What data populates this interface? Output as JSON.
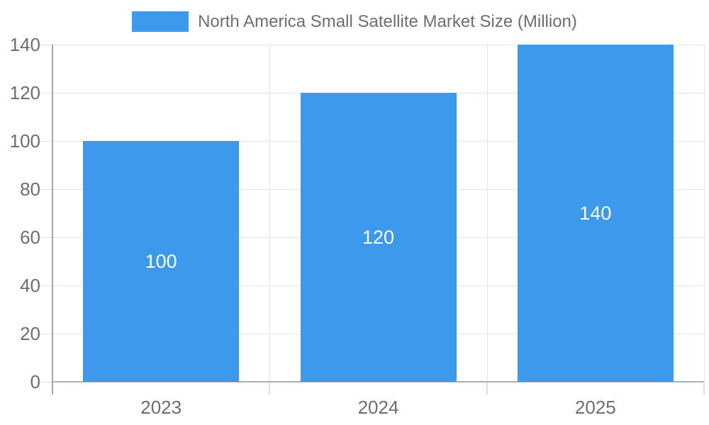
{
  "legend": {
    "label": "North America Small Satellite Market Size (Million)",
    "swatch_color": "#3c99ec"
  },
  "chart_data": {
    "type": "bar",
    "title": "North America Small Satellite Market Size (Million)",
    "categories": [
      "2023",
      "2024",
      "2025"
    ],
    "values": [
      100,
      120,
      140
    ],
    "data_labels": [
      "100",
      "120",
      "140"
    ],
    "xlabel": "",
    "ylabel": "",
    "ylim": [
      0,
      140
    ],
    "yticks": [
      0,
      20,
      40,
      60,
      80,
      100,
      120,
      140
    ],
    "grid": true,
    "legend_position": "top",
    "bar_color": "#3c99ec",
    "data_label_color": "#ffffff"
  },
  "colors": {
    "background": "#ffffff",
    "bar": "#3c99ec",
    "gridline": "#e6e6e6",
    "axis_line": "#a6a6a6",
    "tick_text": "#6e6e6e",
    "data_label_text": "#ffffff"
  }
}
